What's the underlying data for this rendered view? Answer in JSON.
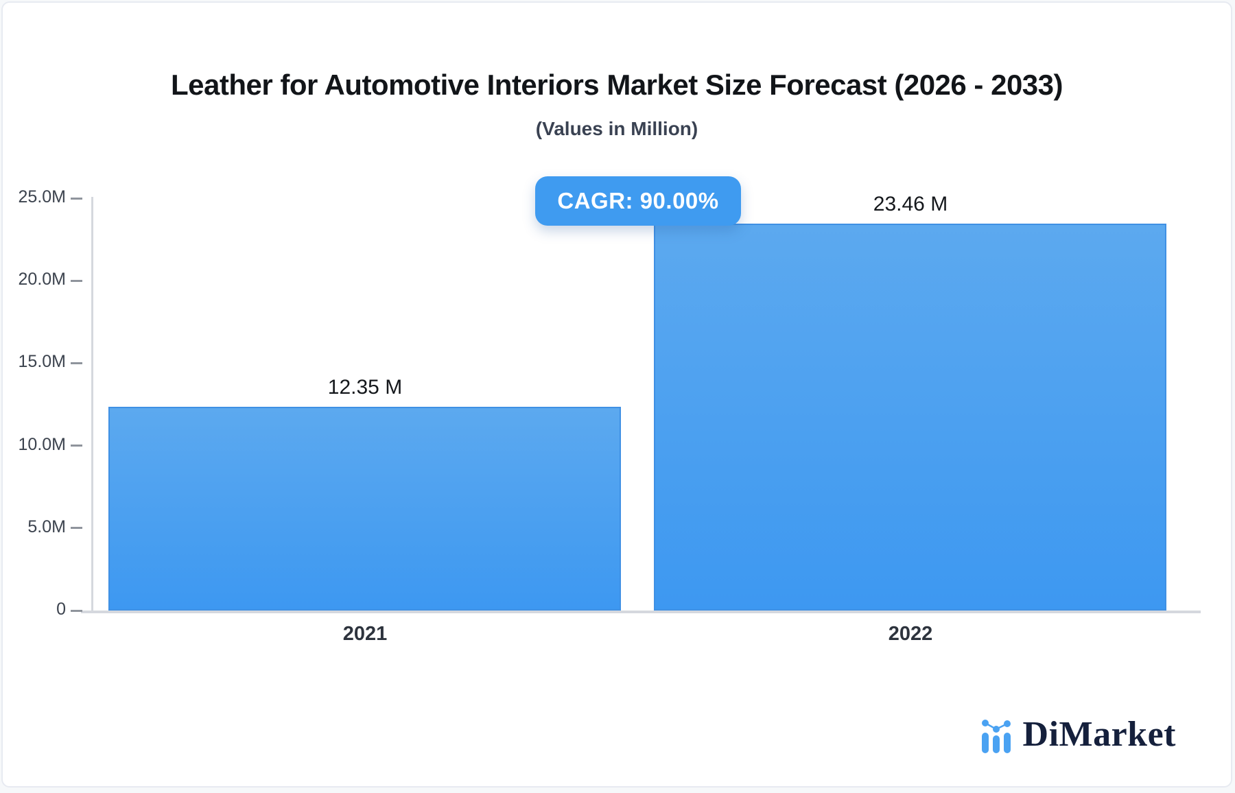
{
  "header": {
    "title": "Leather for Automotive Interiors Market Size Forecast (2026 - 2033)",
    "subtitle": "(Values in Million)"
  },
  "badge": {
    "label": "CAGR: 90.00%"
  },
  "chart_data": {
    "type": "bar",
    "categories": [
      "2021",
      "2022"
    ],
    "values": [
      12.35,
      23.46
    ],
    "value_labels": [
      "12.35 M",
      "23.46 M"
    ],
    "title": "Leather for Automotive Interiors Market Size Forecast (2026 - 2033)",
    "subtitle": "(Values in Million)",
    "xlabel": "",
    "ylabel": "",
    "ylim": [
      0,
      25
    ],
    "yticks": [
      0,
      5,
      10,
      15,
      20,
      25
    ],
    "ytick_labels": [
      "0",
      "5.0M",
      "10.0M",
      "15.0M",
      "20.0M",
      "25.0M"
    ],
    "grid": false,
    "legend": false,
    "annotation": "CAGR: 90.00%"
  },
  "colors": {
    "bar_top": "#5CA9EF",
    "bar_bottom": "#3D98F1",
    "bar_border": "#3F90E4",
    "badge": "#3F9BF0",
    "axis": "#D5D8DE",
    "logo_blue": "#4AA2F2",
    "logo_navy": "#15203C"
  },
  "logo": {
    "text": "DiMarket",
    "icon": "bar-line-chart-icon"
  }
}
